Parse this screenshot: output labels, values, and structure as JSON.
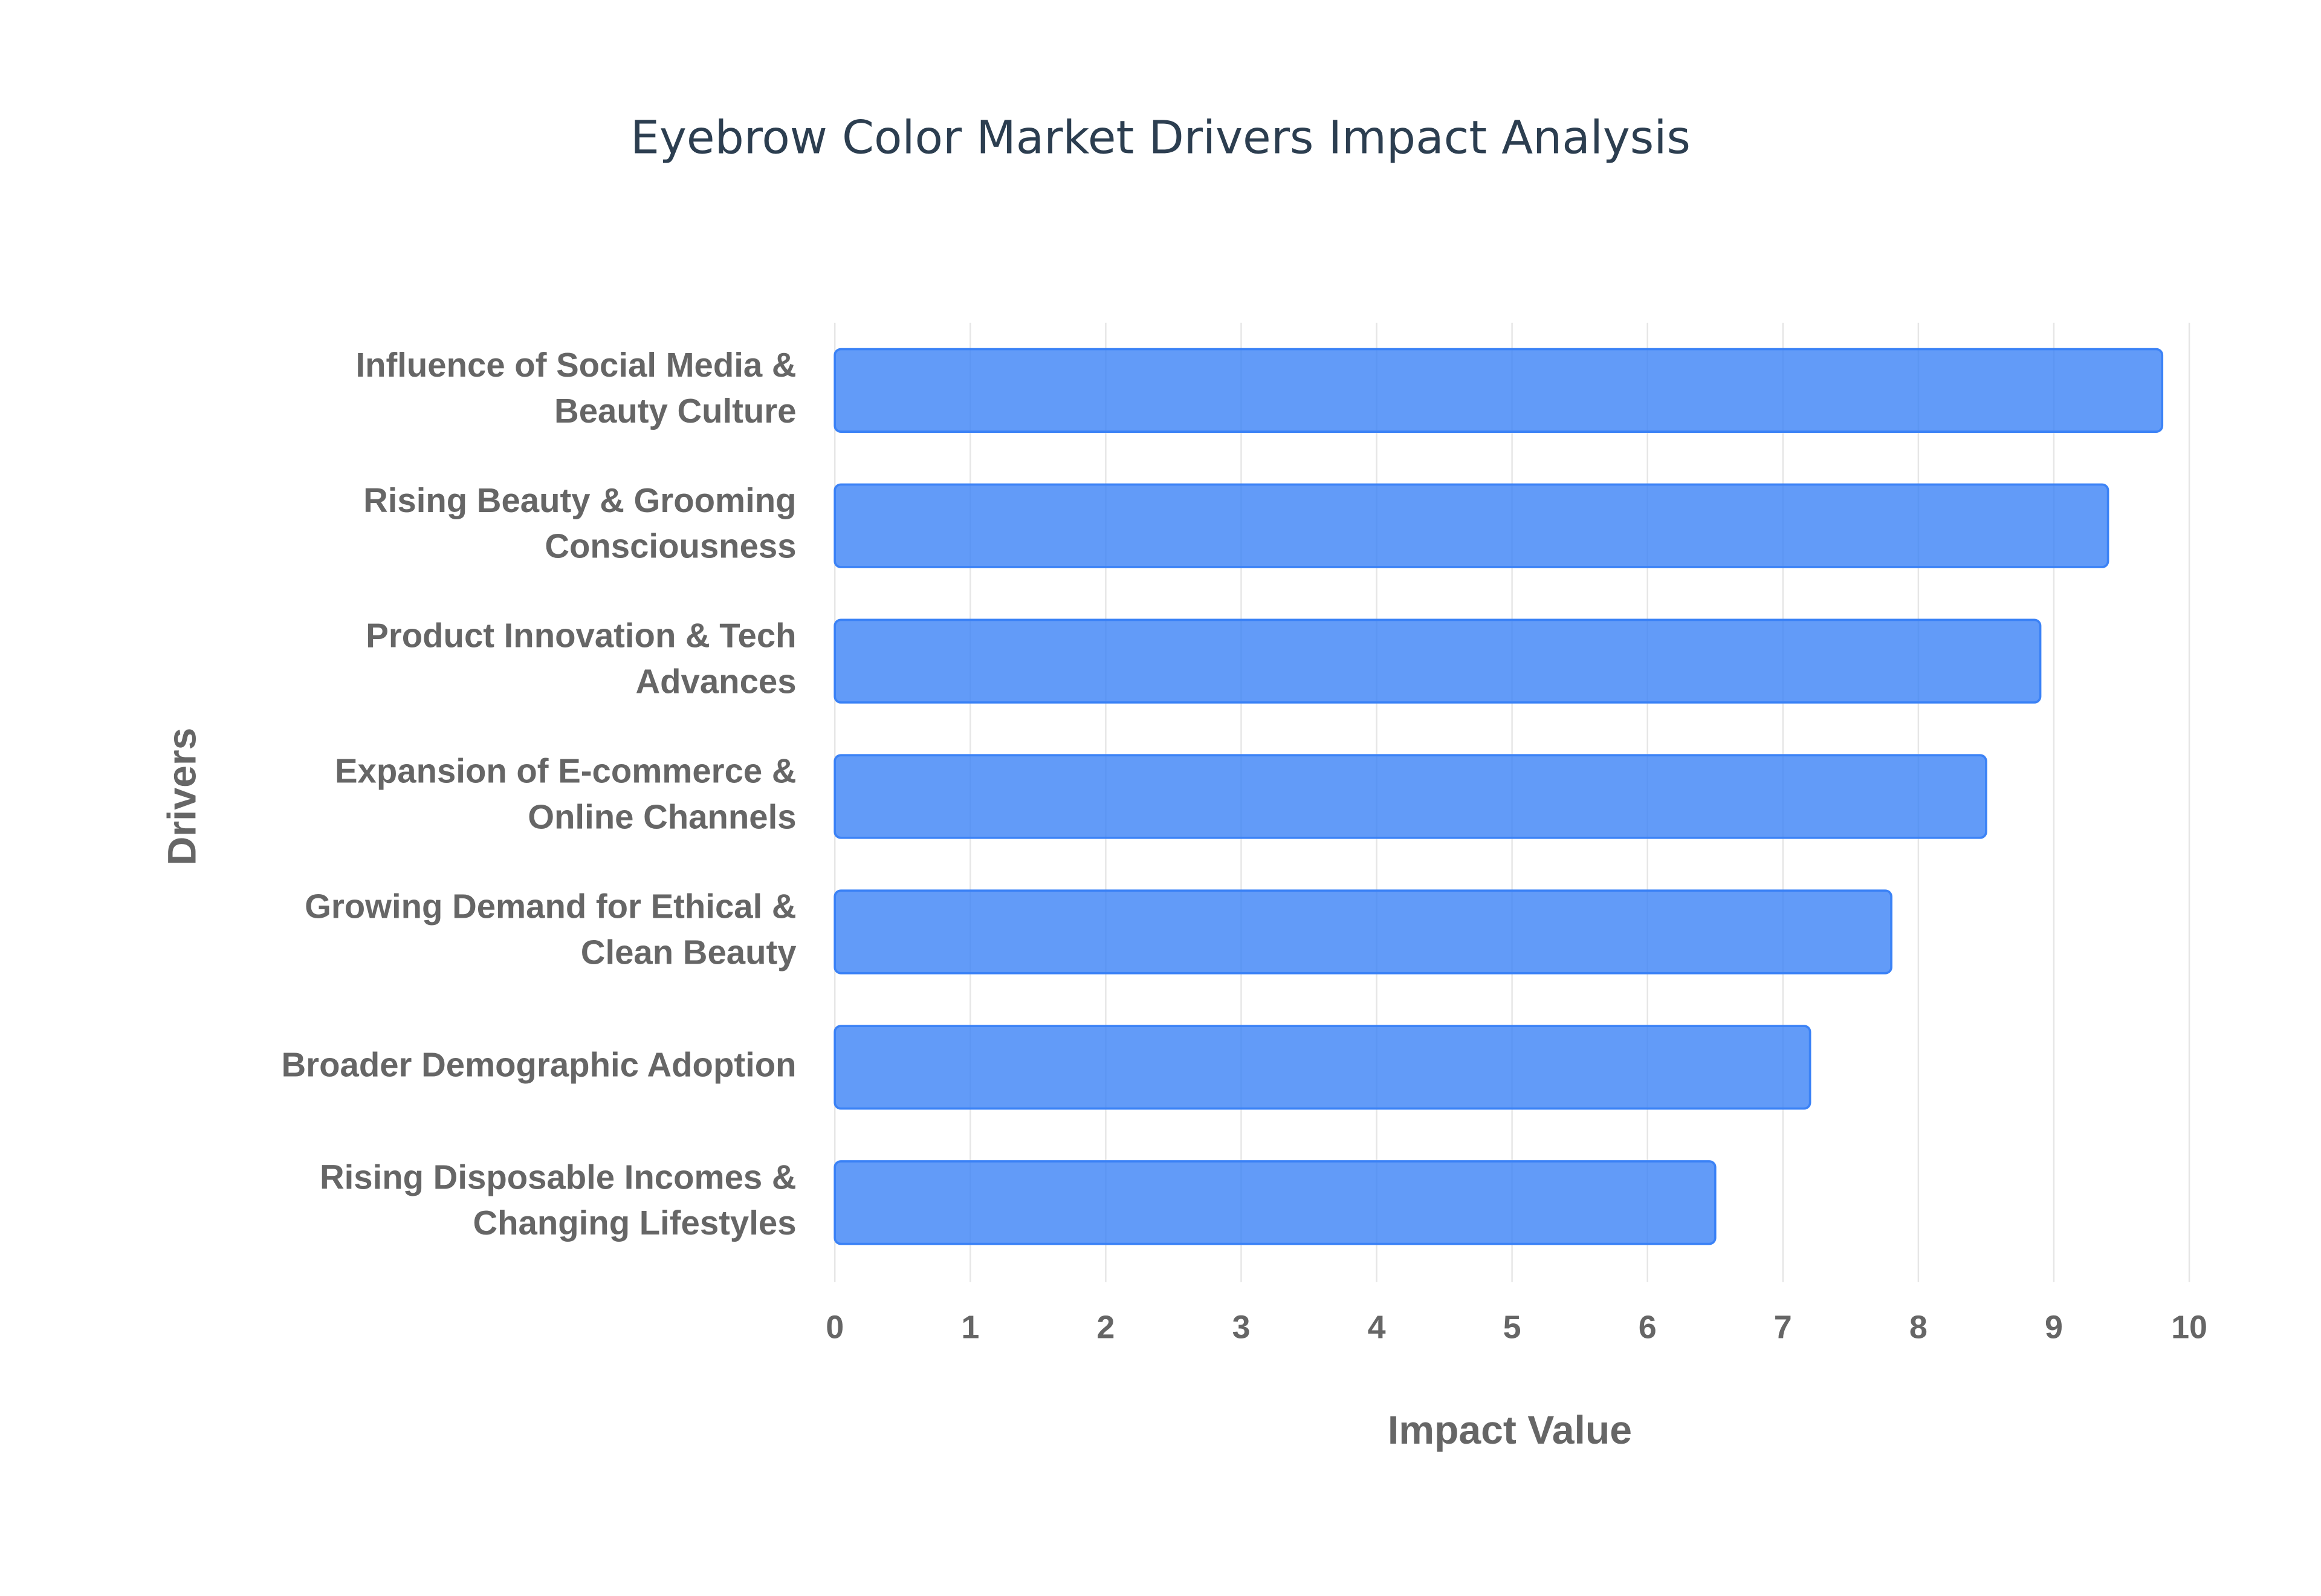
{
  "chart_data": {
    "type": "bar",
    "orientation": "horizontal",
    "title": "Eyebrow Color Market Drivers Impact Analysis",
    "x_label": "Impact Value",
    "y_label": "Drivers",
    "categories": [
      "Influence of Social Media & Beauty Culture",
      "Rising Beauty & Grooming Consciousness",
      "Product Innovation & Tech Advances",
      "Expansion of E-commerce & Online Channels",
      "Growing Demand for Ethical & Clean Beauty",
      "Broader Demographic Adoption",
      "Rising Disposable Incomes & Changing Lifestyles"
    ],
    "values": [
      9.8,
      9.4,
      8.9,
      8.5,
      7.8,
      7.2,
      6.5
    ],
    "color": "#3b82f6",
    "xlim": [
      0,
      10
    ],
    "xticks": [
      0,
      1,
      2,
      3,
      4,
      5,
      6,
      7,
      8,
      9,
      10
    ],
    "grid": true
  }
}
